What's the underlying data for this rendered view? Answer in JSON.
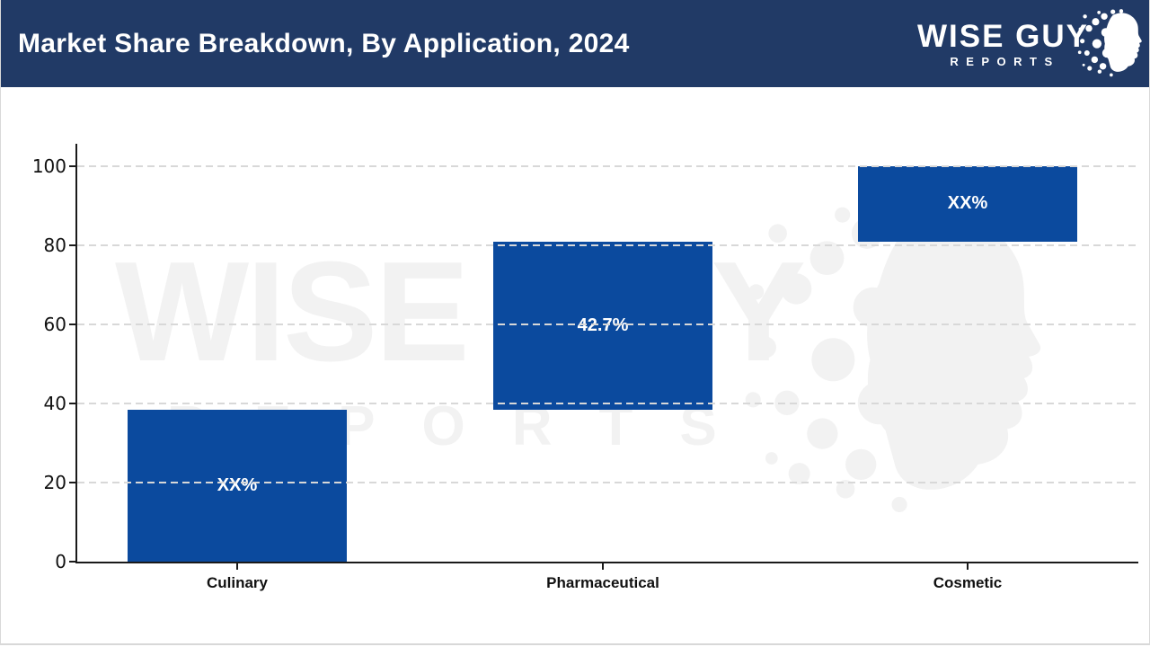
{
  "header": {
    "title": "Market Share Breakdown, By Application, 2024",
    "logo": {
      "line1": "WISE GUY",
      "line2": "REPORTS"
    }
  },
  "watermark": {
    "line1": "WISE GUY",
    "line2": "REPORTS"
  },
  "chart_data": {
    "type": "bar",
    "subtype": "floating-segment-waterfall",
    "title": "Market Share Breakdown, By Application, 2024",
    "categories": [
      "Culinary",
      "Pharmaceutical",
      "Cosmetic"
    ],
    "bars": [
      {
        "category": "Culinary",
        "from": 0,
        "to": 38.3,
        "label": "XX%"
      },
      {
        "category": "Pharmaceutical",
        "from": 38.3,
        "to": 81.0,
        "label": "42.7%",
        "value": 42.7
      },
      {
        "category": "Cosmetic",
        "from": 81.0,
        "to": 100,
        "label": "XX%"
      }
    ],
    "yticks": [
      0,
      20,
      40,
      60,
      80,
      100
    ],
    "ylim": [
      0,
      105
    ],
    "xlabel": "",
    "ylabel": "",
    "grid": "horizontal-dashed",
    "legend": "none",
    "bar_color": "#0b4a9e",
    "bar_label_color": "#ffffff"
  },
  "colors": {
    "header_bg": "#213a66",
    "bar": "#0b4a9e",
    "gridline": "#d8d8d8",
    "axis": "#1a1a1a",
    "watermark": "#f2f2f2",
    "page_border": "#d9d9d9"
  }
}
